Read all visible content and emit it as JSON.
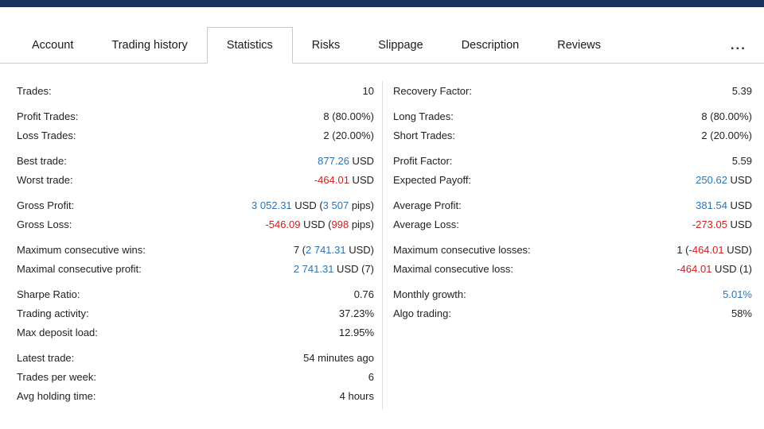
{
  "colors": {
    "topbar": "#19325b",
    "positive_blue": "#2e74b5",
    "negative_red": "#cc2020",
    "text": "#222222",
    "divider": "#e0e0e0",
    "tab_border": "#c9c9c9"
  },
  "tabs": [
    {
      "label": "Account",
      "active": false
    },
    {
      "label": "Trading history",
      "active": false
    },
    {
      "label": "Statistics",
      "active": true
    },
    {
      "label": "Risks",
      "active": false
    },
    {
      "label": "Slippage",
      "active": false
    },
    {
      "label": "Description",
      "active": false
    },
    {
      "label": "Reviews",
      "active": false
    }
  ],
  "more_label": "...",
  "stats": {
    "left_groups": [
      {
        "rows": [
          {
            "label": "Trades:",
            "segments": [
              {
                "t": "10"
              }
            ]
          }
        ]
      },
      {
        "rows": [
          {
            "label": "Profit Trades:",
            "segments": [
              {
                "t": "8 (80.00%)"
              }
            ]
          },
          {
            "label": "Loss Trades:",
            "segments": [
              {
                "t": "2 (20.00%)"
              }
            ]
          }
        ]
      },
      {
        "rows": [
          {
            "label": "Best trade:",
            "segments": [
              {
                "t": "877.26",
                "c": "blue"
              },
              {
                "t": " USD"
              }
            ]
          },
          {
            "label": "Worst trade:",
            "segments": [
              {
                "t": "-464.01",
                "c": "red"
              },
              {
                "t": " USD"
              }
            ]
          }
        ]
      },
      {
        "rows": [
          {
            "label": "Gross Profit:",
            "segments": [
              {
                "t": "3 052.31",
                "c": "blue"
              },
              {
                "t": " USD ("
              },
              {
                "t": "3 507",
                "c": "blue"
              },
              {
                "t": " pips)"
              }
            ]
          },
          {
            "label": "Gross Loss:",
            "segments": [
              {
                "t": "-546.09",
                "c": "red"
              },
              {
                "t": " USD ("
              },
              {
                "t": "998",
                "c": "red"
              },
              {
                "t": " pips)"
              }
            ]
          }
        ]
      },
      {
        "rows": [
          {
            "label": "Maximum consecutive wins:",
            "segments": [
              {
                "t": "7 ("
              },
              {
                "t": "2 741.31",
                "c": "blue"
              },
              {
                "t": " USD)"
              }
            ]
          },
          {
            "label": "Maximal consecutive profit:",
            "segments": [
              {
                "t": "2 741.31",
                "c": "blue"
              },
              {
                "t": " USD (7)"
              }
            ]
          }
        ]
      },
      {
        "rows": [
          {
            "label": "Sharpe Ratio:",
            "segments": [
              {
                "t": "0.76"
              }
            ]
          },
          {
            "label": "Trading activity:",
            "segments": [
              {
                "t": "37.23%"
              }
            ]
          },
          {
            "label": "Max deposit load:",
            "segments": [
              {
                "t": "12.95%"
              }
            ]
          }
        ]
      },
      {
        "rows": [
          {
            "label": "Latest trade:",
            "segments": [
              {
                "t": "54 minutes ago"
              }
            ]
          },
          {
            "label": "Trades per week:",
            "segments": [
              {
                "t": "6"
              }
            ]
          },
          {
            "label": "Avg holding time:",
            "segments": [
              {
                "t": "4 hours"
              }
            ]
          }
        ]
      }
    ],
    "right_groups": [
      {
        "rows": [
          {
            "label": "Recovery Factor:",
            "segments": [
              {
                "t": "5.39"
              }
            ]
          }
        ]
      },
      {
        "rows": [
          {
            "label": "Long Trades:",
            "segments": [
              {
                "t": "8 (80.00%)"
              }
            ]
          },
          {
            "label": "Short Trades:",
            "segments": [
              {
                "t": "2 (20.00%)"
              }
            ]
          }
        ]
      },
      {
        "rows": [
          {
            "label": "Profit Factor:",
            "segments": [
              {
                "t": "5.59"
              }
            ]
          },
          {
            "label": "Expected Payoff:",
            "segments": [
              {
                "t": "250.62",
                "c": "blue"
              },
              {
                "t": " USD"
              }
            ]
          }
        ]
      },
      {
        "rows": [
          {
            "label": "Average Profit:",
            "segments": [
              {
                "t": "381.54",
                "c": "blue"
              },
              {
                "t": " USD"
              }
            ]
          },
          {
            "label": "Average Loss:",
            "segments": [
              {
                "t": "-273.05",
                "c": "red"
              },
              {
                "t": " USD"
              }
            ]
          }
        ]
      },
      {
        "rows": [
          {
            "label": "Maximum consecutive losses:",
            "segments": [
              {
                "t": "1 ("
              },
              {
                "t": "-464.01",
                "c": "red"
              },
              {
                "t": " USD)"
              }
            ]
          },
          {
            "label": "Maximal consecutive loss:",
            "segments": [
              {
                "t": "-464.01",
                "c": "red"
              },
              {
                "t": " USD (1)"
              }
            ]
          }
        ]
      },
      {
        "rows": [
          {
            "label": "Monthly growth:",
            "segments": [
              {
                "t": "5.01%",
                "c": "blue"
              }
            ]
          },
          {
            "label": "Algo trading:",
            "segments": [
              {
                "t": "58%"
              }
            ]
          }
        ]
      }
    ]
  }
}
